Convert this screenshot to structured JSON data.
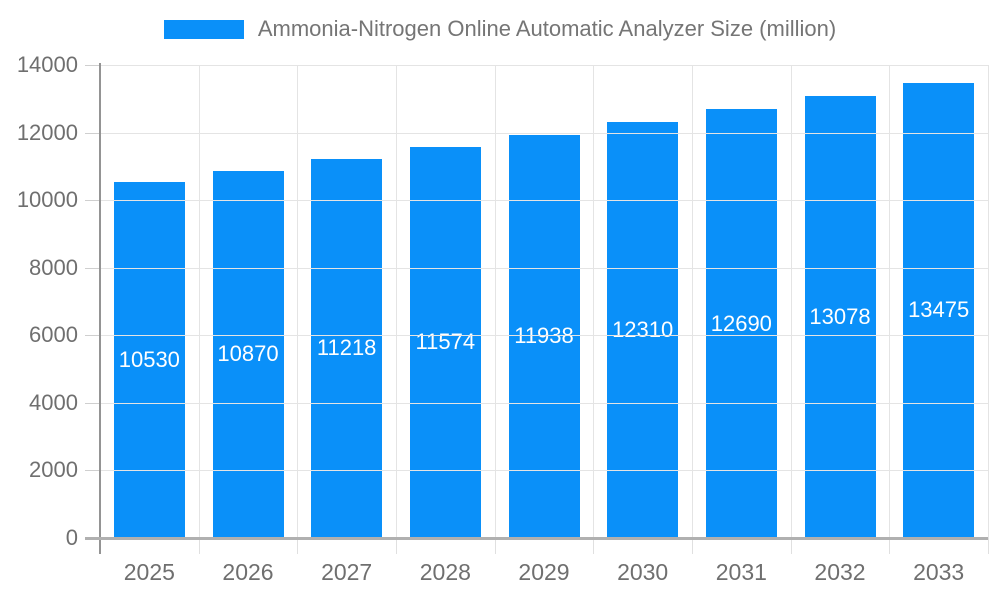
{
  "legend": {
    "label": "Ammonia-Nitrogen Online Automatic Analyzer Size (million)"
  },
  "chart_data": {
    "type": "bar",
    "title": "Ammonia-Nitrogen Online Automatic Analyzer Size (million)",
    "categories": [
      "2025",
      "2026",
      "2027",
      "2028",
      "2029",
      "2030",
      "2031",
      "2032",
      "2033"
    ],
    "values": [
      10530,
      10870,
      11218,
      11574,
      11938,
      12310,
      12690,
      13078,
      13475
    ],
    "xlabel": "",
    "ylabel": "",
    "ylim": [
      0,
      14000
    ],
    "ytick_step": 2000,
    "ytick_labels": [
      "0",
      "2000",
      "4000",
      "6000",
      "8000",
      "10000",
      "12000",
      "14000"
    ],
    "grid": true,
    "legend_position": "top",
    "colors": {
      "bar": "#0a90f9",
      "bar_value_label": "#ffffff",
      "axis_text": "#6f6f6f",
      "grid_line": "#e4e4e4",
      "tick_line": "#cfcfcf",
      "x_tick_line": "#e0e0e0",
      "y_axis_line": "#949494",
      "x_axis_line": "#b0b0b0",
      "legend_text": "#757575"
    }
  }
}
